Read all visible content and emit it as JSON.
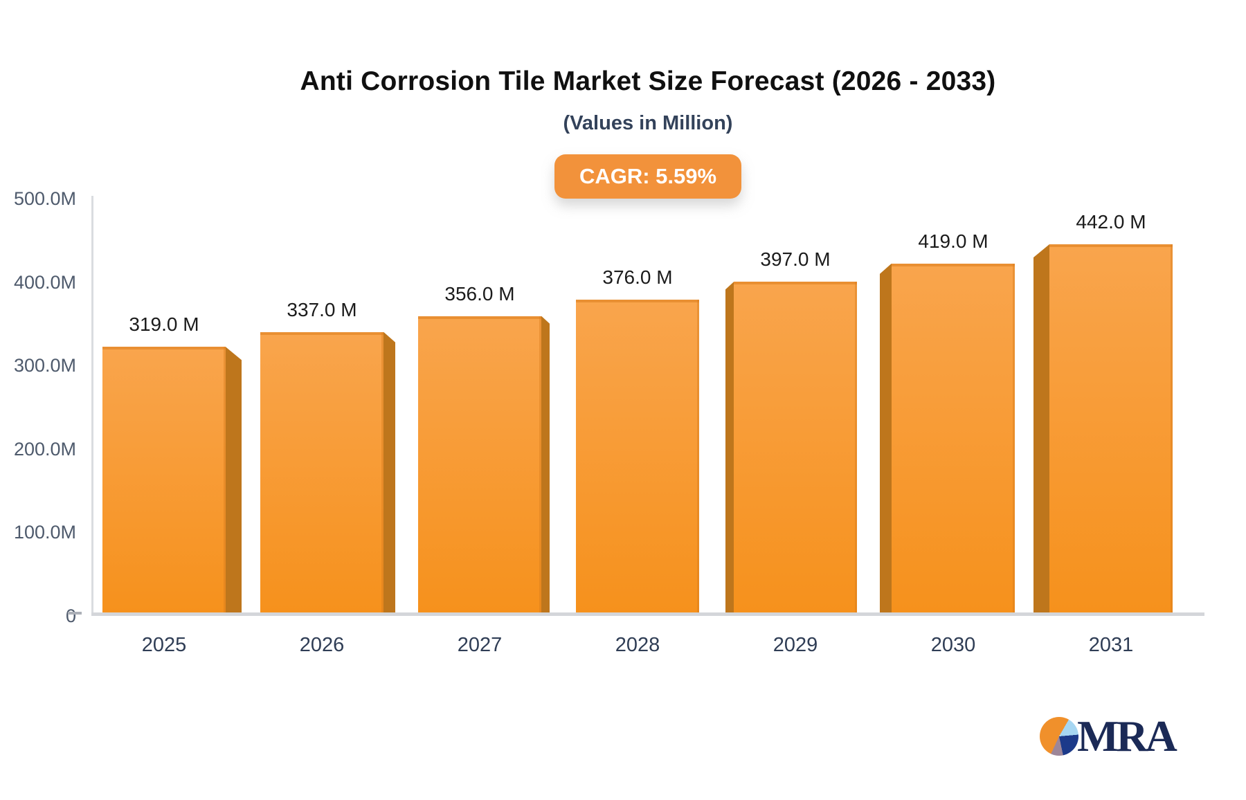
{
  "title": "Anti Corrosion Tile Market Size Forecast (2026 - 2033)",
  "subtitle": "(Values in Million)",
  "badge": {
    "label": "CAGR: 5.59%"
  },
  "colors": {
    "bar_top": "#f9a54d",
    "bar_bottom": "#f6911c",
    "bar_side": "#be761c",
    "badge_bg": "#f2923b",
    "axis_line": "#dadce0",
    "baseline": "#d4d6da",
    "logo_navy": "#1b2a56",
    "logo_orange": "#f0902b",
    "logo_lightblue": "#a6d6f2",
    "logo_mauve": "#9d8698"
  },
  "chart_data": {
    "type": "bar",
    "categories": [
      "2025",
      "2026",
      "2027",
      "2028",
      "2029",
      "2030",
      "2031"
    ],
    "values": [
      319,
      337,
      356,
      376,
      397,
      419,
      442
    ],
    "bar_labels": [
      "319.0 M",
      "337.0 M",
      "356.0 M",
      "376.0 M",
      "397.0 M",
      "419.0 M",
      "442.0 M"
    ],
    "title": "Anti Corrosion Tile Market Size Forecast (2026 - 2033)",
    "xlabel": "",
    "ylabel": "",
    "ylim": [
      0,
      500
    ],
    "ytick_labels": [
      "500.0M",
      "400.0M",
      "300.0M",
      "200.0M",
      "100.0M",
      "0"
    ],
    "grid": "off",
    "legend": "none",
    "bar_style": "3d-orange-gradient, perspective centered on 2028"
  },
  "logo": {
    "text": "MRA"
  }
}
